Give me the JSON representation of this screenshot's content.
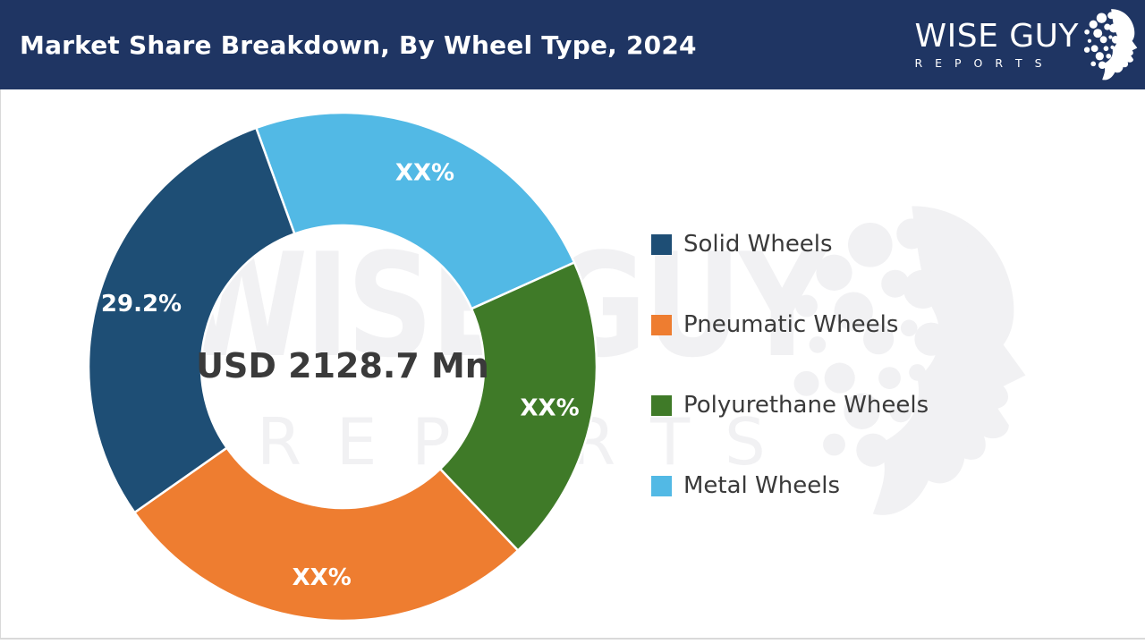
{
  "header": {
    "title": "Market Share Breakdown, By Wheel Type, 2024",
    "logo": {
      "name": "WISE GUY",
      "tagline": "R E P O R T S"
    }
  },
  "watermark": {
    "name": "WISE GUY",
    "tagline": "R E P O R T S"
  },
  "chart_data": {
    "type": "donut",
    "title": "Market Share Breakdown, By Wheel Type, 2024",
    "center_label": "USD 2128.7 Mn",
    "rotation_deg": -19.9,
    "draw_order": [
      3,
      2,
      1,
      0
    ],
    "segments": [
      {
        "name": "Solid Wheels",
        "display_label": "29.2%",
        "value_pct": 29.2,
        "color": "#1e4e75"
      },
      {
        "name": "Pneumatic Wheels",
        "display_label": "XX%",
        "value_pct": 27.4,
        "color": "#ee7d30"
      },
      {
        "name": "Polyurethane Wheels",
        "display_label": "XX%",
        "value_pct": 19.6,
        "color": "#3f7a28"
      },
      {
        "name": "Metal Wheels",
        "display_label": "XX%",
        "value_pct": 23.8,
        "color": "#52b9e5"
      }
    ],
    "legend_position": "right",
    "note": "Slices marked XX% have no printed value; value_pct for them is estimated from the drawn arc angles."
  },
  "colors": {
    "header_bg": "#1f3563",
    "text_dark": "#3a3a3a",
    "watermark": "#f1f1f3",
    "divider": "#d9d9d9"
  }
}
